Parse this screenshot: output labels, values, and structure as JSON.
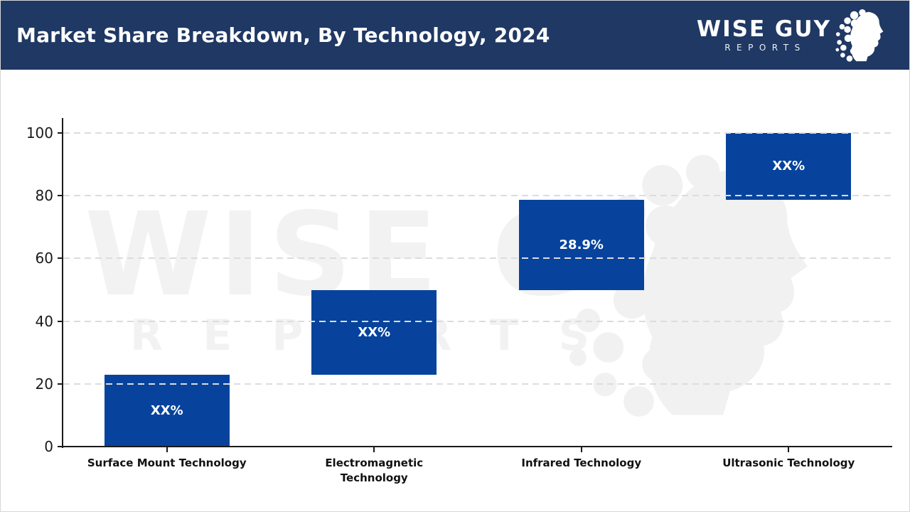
{
  "header": {
    "title": "Market Share Breakdown, By Technology, 2024",
    "bg_color": "#1F3864",
    "logo": {
      "line1": "WISE GUY",
      "line2": "REPORTS"
    }
  },
  "watermark": {
    "line1": "WISE GUY",
    "line2": "REPORTS"
  },
  "chart_data": {
    "type": "bar",
    "subtype": "waterfall",
    "title": "Market Share Breakdown, By Technology, 2024",
    "categories": [
      "Surface Mount Technology",
      "Electromagnetic Technology",
      "Infrared Technology",
      "Ultrasonic Technology"
    ],
    "segments": [
      {
        "category": "Surface Mount Technology",
        "start": 0,
        "end": 22.9,
        "label": "XX%"
      },
      {
        "category": "Electromagnetic Technology",
        "start": 22.9,
        "end": 49.8,
        "label": "XX%"
      },
      {
        "category": "Infrared Technology",
        "start": 49.8,
        "end": 78.7,
        "label": "28.9%"
      },
      {
        "category": "Ultrasonic Technology",
        "start": 78.7,
        "end": 100.0,
        "label": "XX%"
      }
    ],
    "xlabel": "",
    "ylabel": "",
    "ylim": [
      0,
      105
    ],
    "yticks": [
      0,
      20,
      40,
      60,
      80,
      100
    ],
    "grid": "horizontal-dashed-above-bars",
    "legend": "none",
    "bar_color": "#07439C",
    "bar_label_color": "#FFFFFF",
    "axis_color": "#1A1A1A",
    "gridline_color": "#DCDCDC"
  }
}
